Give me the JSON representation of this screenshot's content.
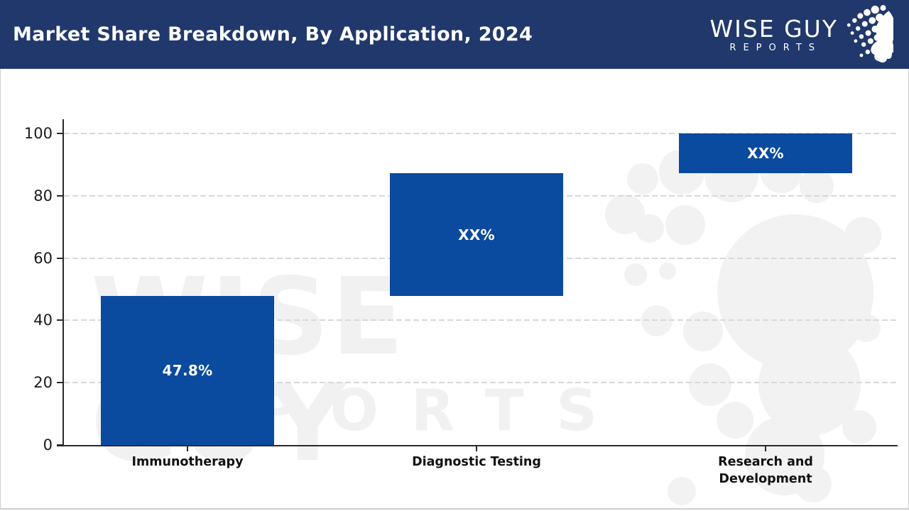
{
  "header": {
    "title": "Market Share Breakdown, By Application, 2024",
    "logo": {
      "name": "WISE GUY",
      "subtitle": "REPORTS"
    }
  },
  "watermark": {
    "line1": "WISE GUY",
    "line2": "REPORTS"
  },
  "chart_data": {
    "type": "bar",
    "subtype": "floating-segment-waterfall",
    "title": "Market Share Breakdown, By Application, 2024",
    "categories": [
      "Immunotherapy",
      "Diagnostic Testing",
      "Research and\nDevelopment"
    ],
    "segments": [
      {
        "category": "Immunotherapy",
        "start": 0,
        "end": 47.8,
        "label": "47.8%"
      },
      {
        "category": "Diagnostic Testing",
        "start": 47.8,
        "end": 87.2,
        "label": "XX%"
      },
      {
        "category": "Research and Development",
        "start": 87.2,
        "end": 100,
        "label": "XX%"
      }
    ],
    "ylim": [
      0,
      100
    ],
    "yticks": [
      0,
      20,
      40,
      60,
      80,
      100
    ],
    "xlabel": "",
    "ylabel": "",
    "grid": "horizontal-dashed",
    "legend": "none",
    "bar_color": "#0a4a9f",
    "bar_label_color": "#ffffff"
  },
  "colors": {
    "header_bg": "#20386b",
    "header_text": "#ffffff",
    "canvas_bg": "#ffffff",
    "axis": "#2a2a2a",
    "gridline": "#d8d8d8",
    "tick_label": "#1a1a1a",
    "watermark": "#f1f1f1",
    "border": "#cfcfcf"
  }
}
